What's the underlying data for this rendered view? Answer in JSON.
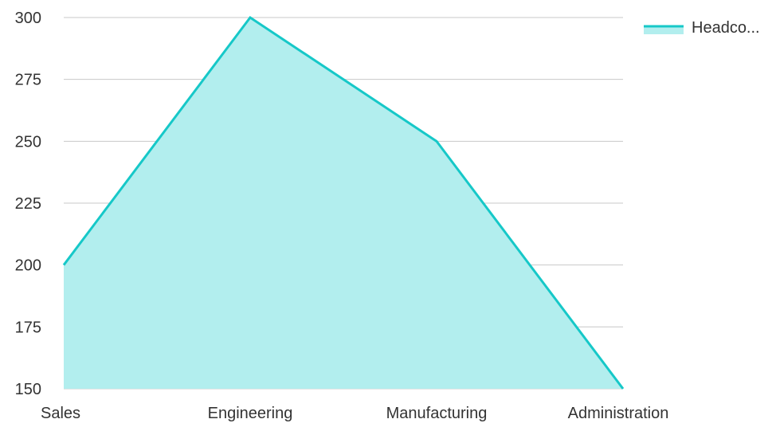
{
  "chart_data": {
    "type": "area",
    "categories": [
      "Sales",
      "Engineering",
      "Manufacturing",
      "Administration"
    ],
    "series": [
      {
        "name": "Headco...",
        "values": [
          200,
          300,
          250,
          150
        ],
        "line_color": "#16c8c8",
        "fill_color": "#b2eeee"
      }
    ],
    "ylim": [
      150,
      300
    ],
    "yticks": [
      150,
      175,
      200,
      225,
      250,
      275,
      300
    ],
    "grid": true,
    "legend_position": "top-right",
    "title": "",
    "xlabel": "",
    "ylabel": ""
  }
}
